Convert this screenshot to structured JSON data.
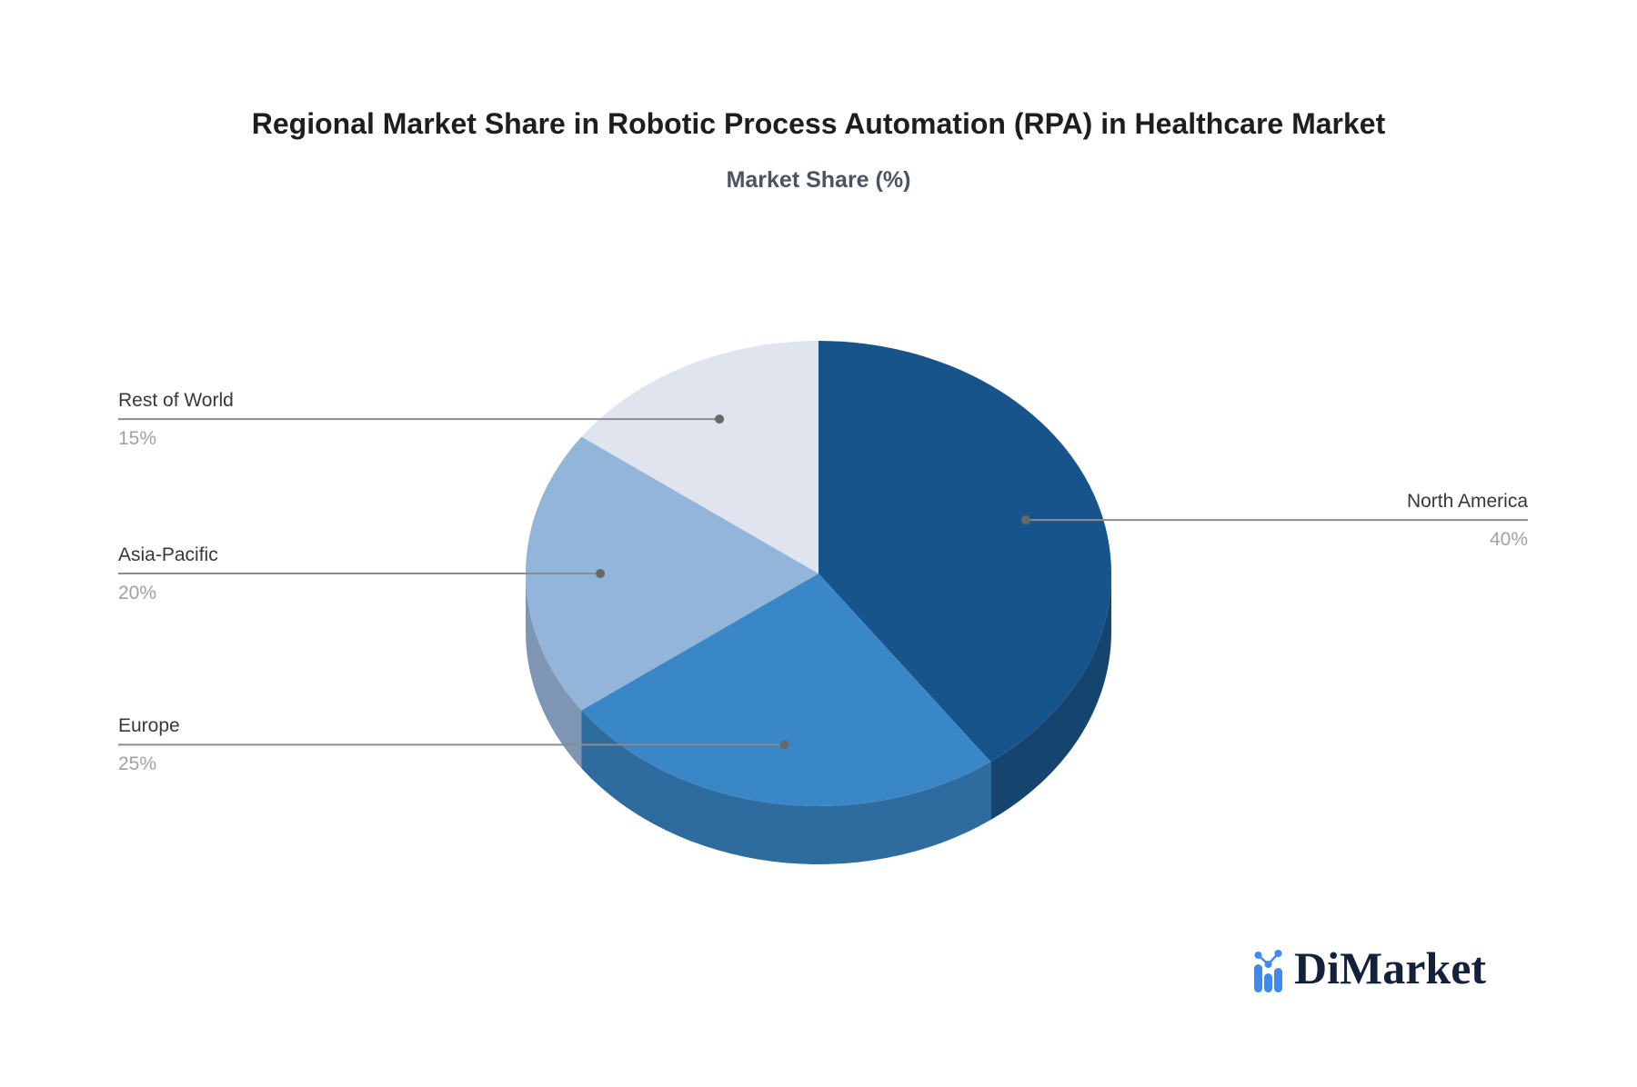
{
  "chart_data": {
    "type": "pie",
    "style": "3d",
    "title": "Regional Market Share in Robotic Process Automation (RPA) in Healthcare Market",
    "subtitle": "Market Share (%)",
    "unit": "%",
    "start_angle_deg": 0,
    "direction": "clockwise",
    "legend": "none",
    "callout_line_color": "#8C8C8C",
    "callout_dot_color": "#686868",
    "slices": [
      {
        "label": "North America",
        "value": 40,
        "display": "40%",
        "color": "#17548C",
        "side_color": "#15456F"
      },
      {
        "label": "Europe",
        "value": 25,
        "display": "25%",
        "color": "#3A87C8",
        "side_color": "#2E6B9E"
      },
      {
        "label": "Asia-Pacific",
        "value": 20,
        "display": "20%",
        "color": "#93B5D9",
        "side_color": "#7E96B3"
      },
      {
        "label": "Rest of World",
        "value": 15,
        "display": "15%",
        "color": "#DFE4EE",
        "side_color": "#B9C4D6"
      }
    ]
  },
  "logo": {
    "text": "DiMarket",
    "icon": "bar-line-chart-icon",
    "icon_color": "#3E8AF0",
    "text_color": "#14213B"
  }
}
